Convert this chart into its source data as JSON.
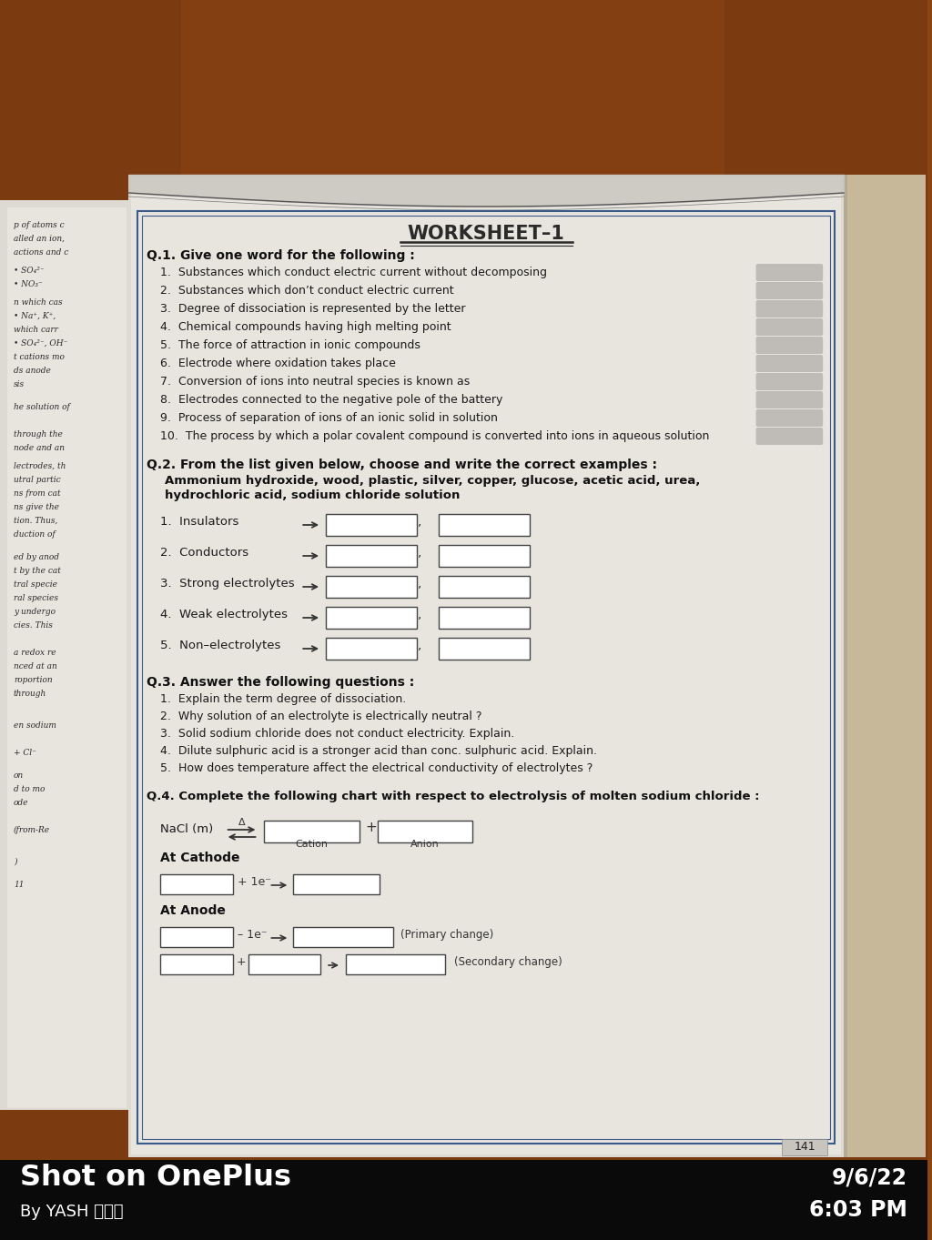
{
  "bg_color": "#8B4513",
  "paper_bg": "#e8e5df",
  "paper_inner": "#eeebe5",
  "title": "WORKSHEET–1",
  "title_color": "#2a2a2a",
  "text_color": "#1a1a1a",
  "bold_color": "#111111",
  "border_color": "#3a5a8a",
  "q1_label": "Q.1. Give one word for the following :",
  "q1_items": [
    "1.  Substances which conduct electric current without decomposing",
    "2.  Substances which don’t conduct electric current",
    "3.  Degree of dissociation is represented by the letter",
    "4.  Chemical compounds having high melting point",
    "5.  The force of attraction in ionic compounds",
    "6.  Electrode where oxidation takes place",
    "7.  Conversion of ions into neutral species is known as",
    "8.  Electrodes connected to the negative pole of the battery",
    "9.  Process of separation of ions of an ionic solid in solution",
    "10.  The process by which a polar covalent compound is converted into ions in aqueous solution"
  ],
  "q2_label": "Q.2. From the list given below, choose and write the correct examples :",
  "q2_line1": "Ammonium hydroxide, wood, plastic, silver, copper, glucose, acetic acid, urea,",
  "q2_line2": "hydrochloric acid, sodium chloride solution",
  "q2_items": [
    "1.  Insulators",
    "2.  Conductors",
    "3.  Strong electrolytes",
    "4.  Weak electrolytes",
    "5.  Non–electrolytes"
  ],
  "q3_label": "Q.3. Answer the following questions :",
  "q3_items": [
    "1.  Explain the term degree of dissociation.",
    "2.  Why solution of an electrolyte is electrically neutral ?",
    "3.  Solid sodium chloride does not conduct electricity. Explain.",
    "4.  Dilute sulphuric acid is a stronger acid than conc. sulphuric acid. Explain.",
    "5.  How does temperature affect the electrical conductivity of electrolytes ?"
  ],
  "q4_label": "Q.4. Complete the following chart with respect to electrolysis of molten sodium chloride :",
  "page_num": "141",
  "watermark": "Shot on OnePlus",
  "watermark2": "By YASH",
  "date": "9/6/22",
  "time": "6:03 PM",
  "left_texts": [
    [
      5,
      250,
      "p of atoms c"
    ],
    [
      5,
      265,
      "alled an ion,"
    ],
    [
      5,
      280,
      "actions and c"
    ],
    [
      5,
      300,
      "• SO₄²⁻"
    ],
    [
      5,
      315,
      "• NO₃⁻"
    ],
    [
      5,
      335,
      "n which cas"
    ],
    [
      5,
      350,
      "• Na⁺, K⁺,"
    ],
    [
      5,
      365,
      "which carr"
    ],
    [
      5,
      380,
      "• SO₄²⁻, OH⁻"
    ],
    [
      5,
      395,
      "t cations mo"
    ],
    [
      5,
      410,
      "ds anode"
    ],
    [
      5,
      425,
      "sis"
    ],
    [
      5,
      450,
      "he solution of"
    ],
    [
      5,
      480,
      "through the"
    ],
    [
      5,
      495,
      "node and an"
    ],
    [
      5,
      515,
      "lectrodes, th"
    ],
    [
      5,
      530,
      "utral partic"
    ],
    [
      5,
      545,
      "ns from cat"
    ],
    [
      5,
      560,
      "ns give the"
    ],
    [
      5,
      575,
      "tion. Thus,"
    ],
    [
      5,
      590,
      "duction of"
    ],
    [
      5,
      615,
      "ed by anod"
    ],
    [
      5,
      630,
      "t by the cat"
    ],
    [
      5,
      645,
      "tral specie"
    ],
    [
      5,
      660,
      "ral species"
    ],
    [
      5,
      675,
      "y undergo"
    ],
    [
      5,
      690,
      "cies. This"
    ],
    [
      5,
      720,
      "a redox re"
    ],
    [
      5,
      735,
      "nced at an"
    ],
    [
      5,
      750,
      "roportion"
    ],
    [
      5,
      765,
      "through"
    ],
    [
      5,
      800,
      "en sodium"
    ],
    [
      5,
      830,
      "+ Cl⁻"
    ],
    [
      5,
      855,
      "on"
    ],
    [
      5,
      870,
      "d to mo"
    ],
    [
      5,
      885,
      "ode"
    ],
    [
      5,
      915,
      "(from-Re"
    ],
    [
      5,
      950,
      ")"
    ],
    [
      5,
      975,
      "11"
    ]
  ]
}
